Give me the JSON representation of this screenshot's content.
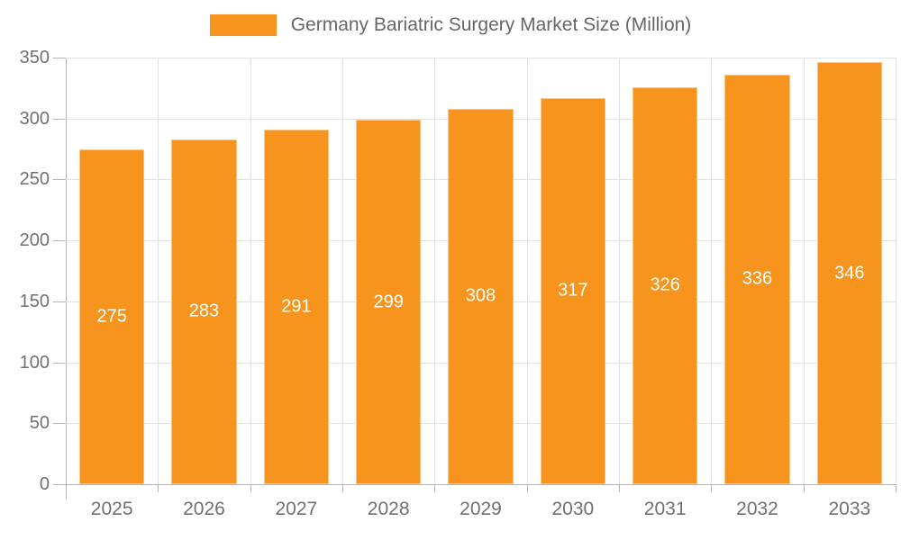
{
  "chart_data": {
    "type": "bar",
    "title": "Germany Bariatric Surgery Market Size (Million)",
    "categories": [
      "2025",
      "2026",
      "2027",
      "2028",
      "2029",
      "2030",
      "2031",
      "2032",
      "2033"
    ],
    "values": [
      275,
      283,
      291,
      299,
      308,
      317,
      326,
      336,
      346
    ],
    "xlabel": "",
    "ylabel": "",
    "ylim": [
      0,
      350
    ],
    "yticks": [
      0,
      50,
      100,
      150,
      200,
      250,
      300,
      350
    ],
    "grid": "on",
    "legend_position": "top-center",
    "bar_label_position": "center-inside"
  },
  "colors": {
    "bar_fill": "#F7941E",
    "bar_value_text": "#FFFFFF",
    "gridline": "#E2E2E2",
    "axis_line": "#B5B5B5",
    "tick": "#B5B5B5",
    "axis_text": "#707070",
    "legend_text": "#666666",
    "background": "#FFFFFF"
  }
}
